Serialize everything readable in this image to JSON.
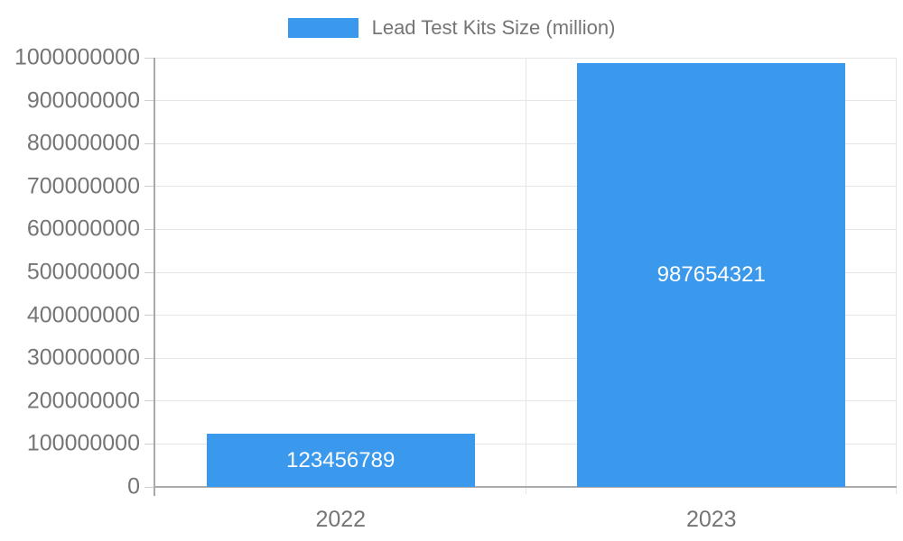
{
  "legend": {
    "label": "Lead Test Kits Size (million)",
    "swatch_color": "#3a99ec"
  },
  "chart_data": {
    "type": "bar",
    "title": "Lead Test Kits Size (million)",
    "categories": [
      "2022",
      "2023"
    ],
    "series": [
      {
        "name": "Lead Test Kits Size (million)",
        "color": "#3a99ec",
        "values": [
          123456789,
          987654321
        ],
        "data_labels": [
          "123456789",
          "987654321"
        ]
      }
    ],
    "xlabel": "",
    "ylabel": "",
    "ylim": [
      0,
      1000000000
    ],
    "ytick_interval": 100000000,
    "ytick_labels": [
      "0",
      "100000000",
      "200000000",
      "300000000",
      "400000000",
      "500000000",
      "600000000",
      "700000000",
      "800000000",
      "900000000",
      "1000000000"
    ],
    "grid": true,
    "legend_position": "top",
    "colors": {
      "bar": "#3a99ec",
      "axis_text": "#757575",
      "gridline": "#e6e6e6",
      "axis_line": "#a9a9a9",
      "data_label_text": "#ffffff",
      "background": "#ffffff"
    }
  }
}
